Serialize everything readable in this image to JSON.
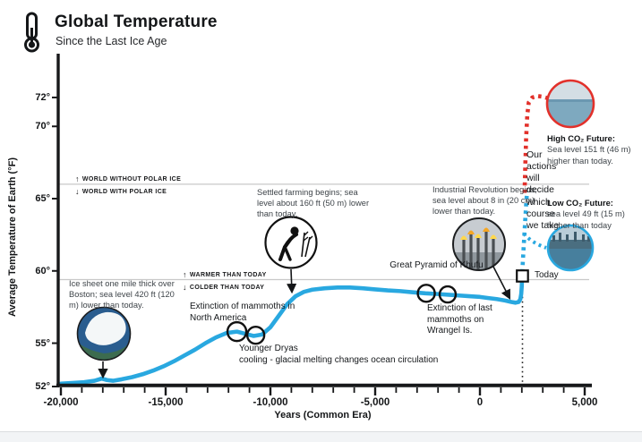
{
  "header": {
    "title": "Global Temperature",
    "subtitle": "Since the Last Ice Age",
    "icon": "thermometer-icon"
  },
  "y_axis": {
    "label": "Average Temperature of Earth (°F)",
    "ticks": [
      {
        "t": 52,
        "label": "52°"
      },
      {
        "t": 55,
        "label": "55°"
      },
      {
        "t": 60,
        "label": "60°"
      },
      {
        "t": 65,
        "label": "65°"
      },
      {
        "t": 70,
        "label": "70°"
      },
      {
        "t": 72,
        "label": "72°"
      }
    ]
  },
  "x_axis": {
    "label": "Years (Common Era)",
    "minor_step": 1000,
    "ticks": [
      {
        "year": -20000,
        "label": "-20,000"
      },
      {
        "year": -15000,
        "label": "-15,000"
      },
      {
        "year": -10000,
        "label": "-10,000"
      },
      {
        "year": -5000,
        "label": "-5,000"
      },
      {
        "year": 0,
        "label": "0"
      },
      {
        "year": 5000,
        "label": "5,000"
      }
    ]
  },
  "reference_lines": [
    {
      "temp": 66.0,
      "label_above": "WORLD WITHOUT POLAR ICE",
      "label_below": "WORLD WITH POLAR ICE"
    },
    {
      "temp": 59.4,
      "label_above": "WARMER THAN TODAY",
      "label_below": "COLDER THAN TODAY"
    }
  ],
  "annotations": {
    "ice_sheet": "Ice sheet one mile thick over Boston; sea level 420 ft (120 m) lower than today.",
    "mammoths_na": "Extinction of mammoths in North America",
    "younger_dryas_title": "Younger Dryas",
    "younger_dryas_body": "cooling - glacial melting changes ocean circulation",
    "settled_farming": "Settled farming begins; sea level about 160 ft (50 m) lower than today.",
    "industrial_revolution": "Industrial Revolution begins; sea level about 8 in (20 cm) lower than today.",
    "great_pyramid": "Great Pyramid of Khufu",
    "wrangel": "Extinction of last mammoths on Wrangel Is.",
    "our_actions": "Our actions will decide which course we take",
    "today": "Today",
    "high_co2_title": "High CO₂ Future:",
    "high_co2_body": "Sea level 151 ft (46 m) higher than today.",
    "low_co2_title": "Low CO₂ Future:",
    "low_co2_body": "sea level 49 ft (15 m) higher than today",
    "up_arrow": "↑",
    "down_arrow": "↓"
  },
  "colors": {
    "history_line": "#29a8e0",
    "high_future": "#e2312b",
    "low_future": "#29a8e0",
    "reference_line": "#c8c8c8",
    "axis": "#17181a",
    "globe_sea": "#2a5d8f",
    "ice_cap": "#f4f7f8"
  },
  "chart_data": {
    "type": "line",
    "title": "Global Temperature Since the Last Ice Age",
    "xlabel": "Years (Common Era)",
    "ylabel": "Average Temperature of Earth (°F)",
    "xlim": [
      -20000,
      5000
    ],
    "ylim": [
      52,
      73
    ],
    "grid": false,
    "series": [
      {
        "name": "Average temperature of Earth (reconstruction)",
        "style": "solid",
        "color": "#29a8e0",
        "points": [
          [
            -20000,
            52.2
          ],
          [
            -19400,
            52.25
          ],
          [
            -18900,
            52.3
          ],
          [
            -18400,
            52.4
          ],
          [
            -18050,
            52.55
          ],
          [
            -17800,
            52.45
          ],
          [
            -17500,
            52.4
          ],
          [
            -17100,
            52.5
          ],
          [
            -16600,
            52.65
          ],
          [
            -16100,
            52.85
          ],
          [
            -15600,
            53.1
          ],
          [
            -15100,
            53.4
          ],
          [
            -14600,
            53.75
          ],
          [
            -14100,
            54.15
          ],
          [
            -13600,
            54.55
          ],
          [
            -13100,
            55.0
          ],
          [
            -12600,
            55.4
          ],
          [
            -12100,
            55.7
          ],
          [
            -11600,
            55.8
          ],
          [
            -11200,
            55.65
          ],
          [
            -10800,
            55.5
          ],
          [
            -10400,
            55.6
          ],
          [
            -10000,
            56.1
          ],
          [
            -9600,
            56.9
          ],
          [
            -9200,
            57.7
          ],
          [
            -8800,
            58.25
          ],
          [
            -8400,
            58.55
          ],
          [
            -8000,
            58.7
          ],
          [
            -7400,
            58.8
          ],
          [
            -6800,
            58.85
          ],
          [
            -6200,
            58.85
          ],
          [
            -5600,
            58.8
          ],
          [
            -5000,
            58.72
          ],
          [
            -4400,
            58.65
          ],
          [
            -3800,
            58.6
          ],
          [
            -3200,
            58.52
          ],
          [
            -2600,
            58.45
          ],
          [
            -2000,
            58.4
          ],
          [
            -1500,
            58.35
          ],
          [
            -1000,
            58.3
          ],
          [
            -500,
            58.25
          ],
          [
            0,
            58.2
          ],
          [
            400,
            58.12
          ],
          [
            800,
            58.05
          ],
          [
            1200,
            57.95
          ],
          [
            1500,
            57.85
          ],
          [
            1700,
            57.8
          ],
          [
            1850,
            57.85
          ],
          [
            1930,
            58.05
          ],
          [
            1970,
            58.4
          ],
          [
            1995,
            58.9
          ],
          [
            2016,
            59.65
          ]
        ]
      },
      {
        "name": "High CO₂ future projection",
        "style": "dashed",
        "color": "#e2312b",
        "points": [
          [
            2130,
            65.4
          ],
          [
            2165,
            67.3
          ],
          [
            2205,
            69.2
          ],
          [
            2260,
            70.8
          ],
          [
            2330,
            71.65
          ],
          [
            2500,
            72.0
          ],
          [
            2750,
            72.1
          ],
          [
            3010,
            72.05
          ],
          [
            3240,
            71.95
          ]
        ]
      },
      {
        "name": "Low CO₂ future projection",
        "style": "dashed",
        "color": "#29a8e0",
        "points": [
          [
            2020,
            59.9
          ],
          [
            2050,
            60.7
          ],
          [
            2085,
            61.6
          ],
          [
            2125,
            62.6
          ],
          [
            2165,
            63.6
          ],
          [
            2210,
            64.7
          ],
          [
            2245,
            65.4
          ]
        ]
      }
    ],
    "events": [
      {
        "label": "Ice sheet one mile thick over Boston",
        "year": -18050,
        "temp": 52.55
      },
      {
        "label": "Extinction of mammoths in North America",
        "year": -11600,
        "temp": 55.8
      },
      {
        "label": "Younger Dryas cooling",
        "year": -10700,
        "temp": 55.55
      },
      {
        "label": "Settled farming begins",
        "year": -8970,
        "temp": 58.0
      },
      {
        "label": "Great Pyramid of Khufu",
        "year": -2560,
        "temp": 58.45
      },
      {
        "label": "Extinction of last mammoths on Wrangel Is.",
        "year": -1540,
        "temp": 58.37
      },
      {
        "label": "Industrial Revolution begins",
        "year": 1760,
        "temp": 57.8
      },
      {
        "label": "Today",
        "year": 2016,
        "temp": 59.65
      }
    ]
  }
}
